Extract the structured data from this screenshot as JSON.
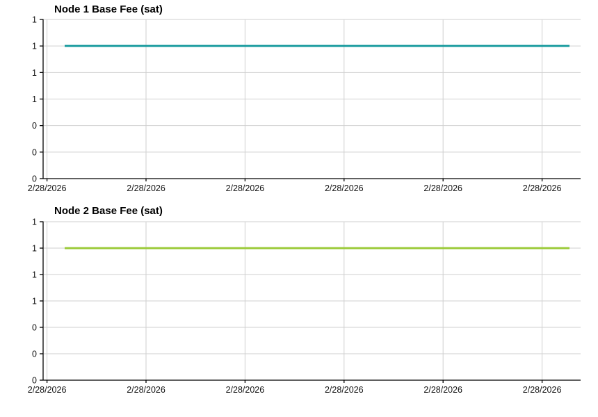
{
  "page": {
    "background_color": "#ffffff",
    "grid_color": "#cfcfcf",
    "axis_color": "#000000",
    "text_color": "#111111"
  },
  "chart_data": [
    {
      "type": "line",
      "title": "Node 1 Base Fee (sat)",
      "xlabel": "",
      "ylabel": "",
      "x_tick_labels": [
        "2/28/2026",
        "2/28/2026",
        "2/28/2026",
        "2/28/2026",
        "2/28/2026",
        "2/28/2026"
      ],
      "y_tick_labels": [
        "1",
        "1",
        "1",
        "1",
        "0",
        "0",
        "0"
      ],
      "y_tick_values": [
        1.2,
        1.0,
        0.8,
        0.6,
        0.4,
        0.2,
        0.0
      ],
      "ylim": [
        0,
        1.2
      ],
      "grid": true,
      "legend_position": "none",
      "series": [
        {
          "name": "Node 1 Base Fee",
          "color": "#1d9da0",
          "constant_value": 1,
          "values": [
            1,
            1,
            1,
            1,
            1,
            1
          ]
        }
      ]
    },
    {
      "type": "line",
      "title": "Node 2 Base Fee (sat)",
      "xlabel": "",
      "ylabel": "",
      "x_tick_labels": [
        "2/28/2026",
        "2/28/2026",
        "2/28/2026",
        "2/28/2026",
        "2/28/2026",
        "2/28/2026"
      ],
      "y_tick_labels": [
        "1",
        "1",
        "1",
        "1",
        "0",
        "0",
        "0"
      ],
      "y_tick_values": [
        1.2,
        1.0,
        0.8,
        0.6,
        0.4,
        0.2,
        0.0
      ],
      "ylim": [
        0,
        1.2
      ],
      "grid": true,
      "legend_position": "none",
      "series": [
        {
          "name": "Node 2 Base Fee",
          "color": "#9ccb3b",
          "constant_value": 1,
          "values": [
            1,
            1,
            1,
            1,
            1,
            1
          ]
        }
      ]
    }
  ]
}
